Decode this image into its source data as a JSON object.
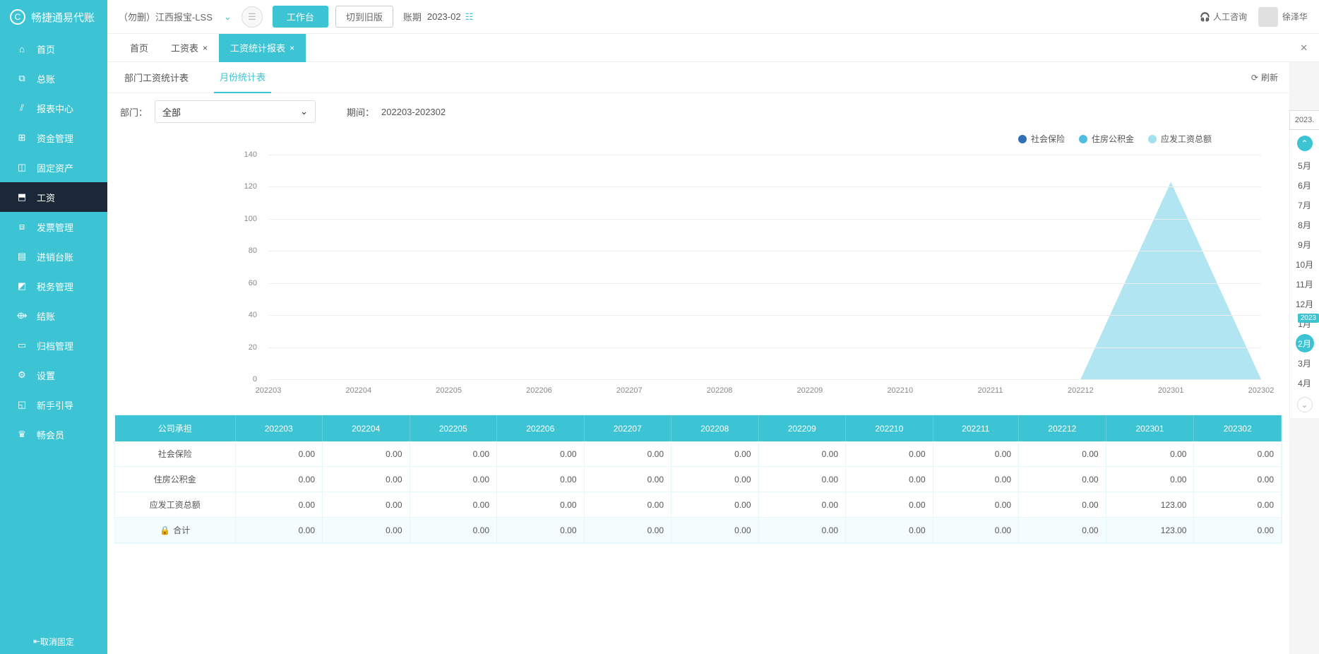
{
  "brand": "畅捷通易代账",
  "sidebar": {
    "items": [
      {
        "icon": "⌂",
        "label": "首页"
      },
      {
        "icon": "⧉",
        "label": "总账"
      },
      {
        "icon": "⫽",
        "label": "报表中心"
      },
      {
        "icon": "⊞",
        "label": "资金管理"
      },
      {
        "icon": "◫",
        "label": "固定资产"
      },
      {
        "icon": "⬒",
        "label": "工资"
      },
      {
        "icon": "⧈",
        "label": "发票管理"
      },
      {
        "icon": "▤",
        "label": "进销台账"
      },
      {
        "icon": "◩",
        "label": "税务管理"
      },
      {
        "icon": "⟴",
        "label": "结账"
      },
      {
        "icon": "▭",
        "label": "归档管理"
      },
      {
        "icon": "⚙",
        "label": "设置"
      },
      {
        "icon": "◱",
        "label": "新手引导"
      },
      {
        "icon": "♛",
        "label": "畅会员"
      }
    ],
    "active_index": 5,
    "unpin": "取消固定"
  },
  "topbar": {
    "company": "（勿删）江西报宝-LSS",
    "workbench": "工作台",
    "switch_old": "切到旧版",
    "period_label": "账期",
    "period_value": "2023-02",
    "help": "人工咨询",
    "user": "徐泽华"
  },
  "tabs": [
    {
      "label": "首页",
      "closable": false
    },
    {
      "label": "工资表",
      "closable": true
    },
    {
      "label": "工资统计报表",
      "closable": true
    }
  ],
  "active_tab": 2,
  "subtabs": [
    "部门工资统计表",
    "月份统计表"
  ],
  "active_subtab": 1,
  "refresh": "刷新",
  "filter": {
    "dept_label": "部门：",
    "dept_value": "全部",
    "period_label": "期间：",
    "period_value": "202203-202302"
  },
  "chart": {
    "legend": [
      {
        "name": "社会保险",
        "color": "#2e6fb7"
      },
      {
        "name": "住房公积金",
        "color": "#4fbde0"
      },
      {
        "name": "应发工资总额",
        "color": "#a3e0f0"
      }
    ],
    "y_ticks": [
      0,
      20,
      40,
      60,
      80,
      100,
      120,
      140
    ],
    "y_max": 140,
    "x_labels": [
      "202203",
      "202204",
      "202205",
      "202206",
      "202207",
      "202208",
      "202209",
      "202210",
      "202211",
      "202212",
      "202301",
      "202302"
    ],
    "series_area": {
      "color": "#a3e0f0",
      "values": [
        0,
        0,
        0,
        0,
        0,
        0,
        0,
        0,
        0,
        0,
        123,
        0
      ]
    },
    "grid_color": "#eeeeee",
    "axis_color": "#888888",
    "background": "#ffffff"
  },
  "table": {
    "first_col_header": "公司承担",
    "col_headers": [
      "202203",
      "202204",
      "202205",
      "202206",
      "202207",
      "202208",
      "202209",
      "202210",
      "202211",
      "202212",
      "202301",
      "202302"
    ],
    "rows": [
      {
        "label": "社会保险",
        "cells": [
          "0.00",
          "0.00",
          "0.00",
          "0.00",
          "0.00",
          "0.00",
          "0.00",
          "0.00",
          "0.00",
          "0.00",
          "0.00",
          "0.00"
        ]
      },
      {
        "label": "住房公积金",
        "cells": [
          "0.00",
          "0.00",
          "0.00",
          "0.00",
          "0.00",
          "0.00",
          "0.00",
          "0.00",
          "0.00",
          "0.00",
          "0.00",
          "0.00"
        ]
      },
      {
        "label": "应发工资总额",
        "cells": [
          "0.00",
          "0.00",
          "0.00",
          "0.00",
          "0.00",
          "0.00",
          "0.00",
          "0.00",
          "0.00",
          "0.00",
          "123.00",
          "0.00"
        ]
      }
    ],
    "total": {
      "label": "合计",
      "cells": [
        "0.00",
        "0.00",
        "0.00",
        "0.00",
        "0.00",
        "0.00",
        "0.00",
        "0.00",
        "0.00",
        "0.00",
        "123.00",
        "0.00"
      ]
    }
  },
  "rail": {
    "year": "2023.",
    "badge": "2023",
    "months": [
      "5月",
      "6月",
      "7月",
      "8月",
      "9月",
      "10月",
      "11月",
      "12月",
      "1月",
      "2月",
      "3月",
      "4月"
    ],
    "active": "2月",
    "badge_before": "1月"
  }
}
